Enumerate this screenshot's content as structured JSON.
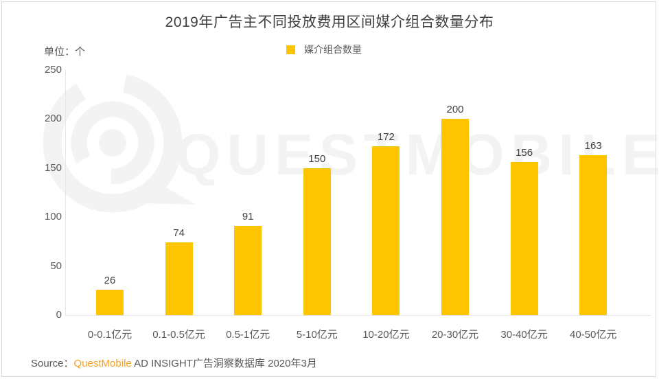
{
  "title": "2019年广告主不同投放费用区间媒介组合数量分布",
  "unit_label": "单位：个",
  "legend": {
    "label": "媒介组合数量"
  },
  "watermark": {
    "text": "QUESTMOBILE",
    "color": "#f3f3f3"
  },
  "source": {
    "prefix": "Source：",
    "brand": "QuestMobile",
    "suffix": " AD INSIGHT广告洞察数据库 2020年3月",
    "brand_color": "#F8A120",
    "text_color": "#595959"
  },
  "chart_data": {
    "type": "bar",
    "title": "2019年广告主不同投放费用区间媒介组合数量分布",
    "series_name": "媒介组合数量",
    "categories": [
      "0-0.1亿元",
      "0.1-0.5亿元",
      "0.5-1亿元",
      "5-10亿元",
      "10-20亿元",
      "20-30亿元",
      "30-40亿元",
      "40-50亿元"
    ],
    "values": [
      26,
      74,
      91,
      150,
      172,
      200,
      156,
      163
    ],
    "xlabel": "",
    "ylabel": "单位：个",
    "ylim": [
      0,
      250
    ],
    "yticks": [
      0,
      50,
      100,
      150,
      200,
      250
    ],
    "bar_color": "#FDC500",
    "grid": false,
    "legend_position": "top-center"
  }
}
